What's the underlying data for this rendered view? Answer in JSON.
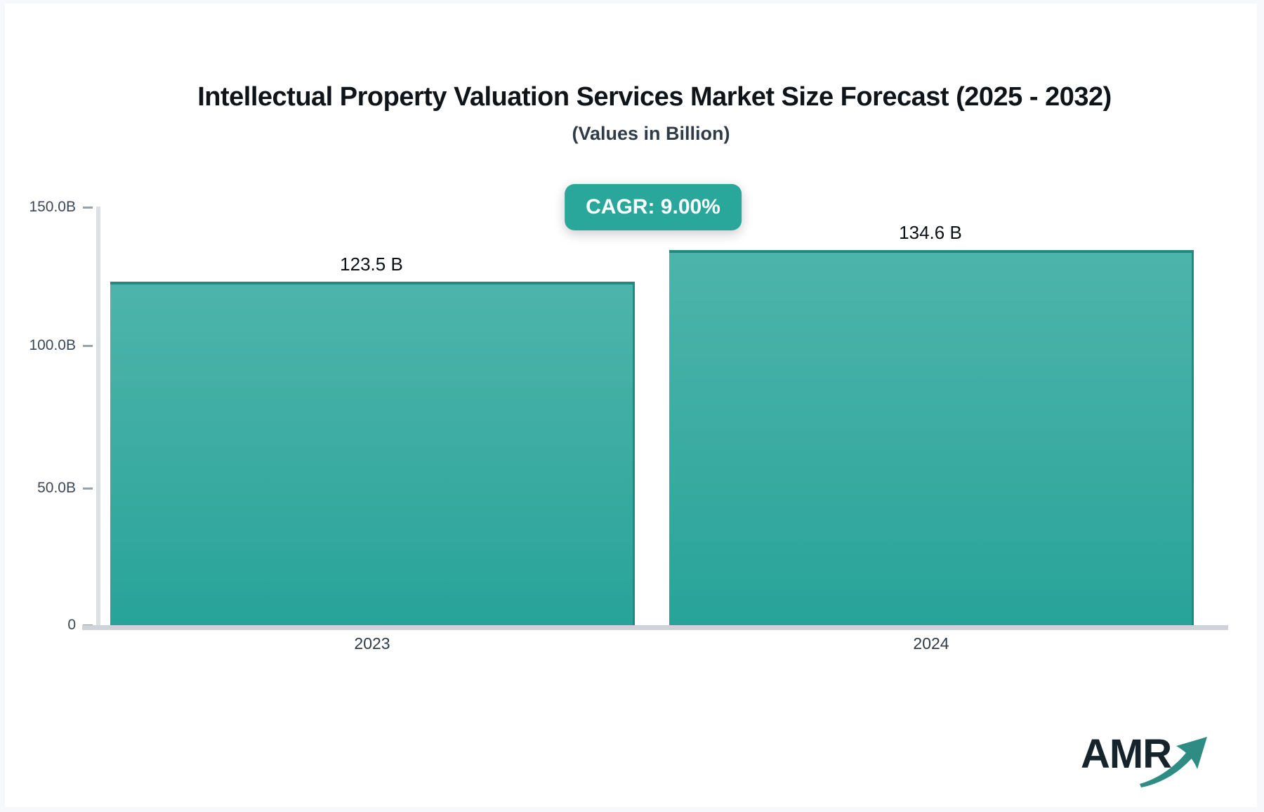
{
  "page": {
    "background_color": "#f6f8fb",
    "card_color": "#ffffff"
  },
  "header": {
    "title": "Intellectual Property Valuation Services Market Size Forecast (2025 - 2032)",
    "subtitle": "(Values in Billion)"
  },
  "badge": {
    "label": "CAGR: 9.00%",
    "background_color": "#2aa79b",
    "text_color": "#ffffff"
  },
  "chart_data": {
    "type": "bar",
    "title": "Intellectual Property Valuation Services Market Size Forecast (2025 - 2032)",
    "subtitle": "(Values in Billion)",
    "cagr_percent": "9.00%",
    "categories": [
      "2023",
      "2024"
    ],
    "values": [
      123.5,
      134.6
    ],
    "value_labels": [
      "123.5 B",
      "134.6 B"
    ],
    "unit": "Billion",
    "xlabel": "",
    "ylabel": "",
    "ylim": [
      0,
      150
    ],
    "ytick_labels": [
      "150.0B",
      "100.0B",
      "50.0B",
      "0"
    ],
    "ytick_values": [
      150,
      100,
      50,
      0
    ],
    "grid": false,
    "legend": "none",
    "bar_fill_top": "#4db4ab",
    "bar_fill_bottom": "#27a399",
    "bar_edge_color": "#26877f"
  },
  "logo": {
    "text": "AMR",
    "text_color": "#15232b",
    "arrow_color": "#2e8c84"
  }
}
